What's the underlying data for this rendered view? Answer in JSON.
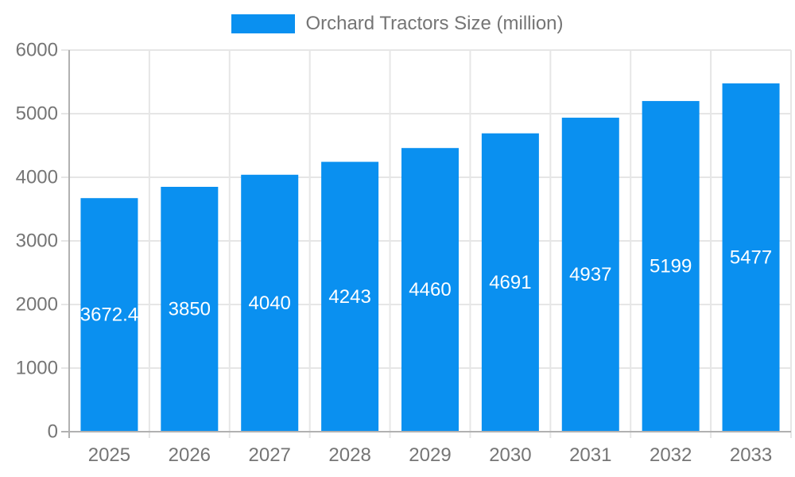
{
  "legend": {
    "label": "Orchard Tractors Size (million)"
  },
  "colors": {
    "bar": "#0a90f0",
    "grid": "#e6e6e6",
    "axis": "#b1b1b1",
    "tick_text": "#757575",
    "bar_label": "#ffffff",
    "background": "#ffffff"
  },
  "chart_data": {
    "type": "bar",
    "title": "Orchard Tractors Size (million)",
    "categories": [
      "2025",
      "2026",
      "2027",
      "2028",
      "2029",
      "2030",
      "2031",
      "2032",
      "2033"
    ],
    "values": [
      3672.4,
      3850,
      4040,
      4243,
      4460,
      4691,
      4937,
      5199,
      5477
    ],
    "value_labels": [
      "3672.4",
      "3850",
      "4040",
      "4243",
      "4460",
      "4691",
      "4937",
      "5199",
      "5477"
    ],
    "value_label_position": "inside-center",
    "xlabel": "",
    "ylabel": "",
    "ylim": [
      0,
      6000
    ],
    "yticks": [
      0,
      1000,
      2000,
      3000,
      4000,
      5000,
      6000
    ],
    "grid": true,
    "legend_position": "top"
  }
}
